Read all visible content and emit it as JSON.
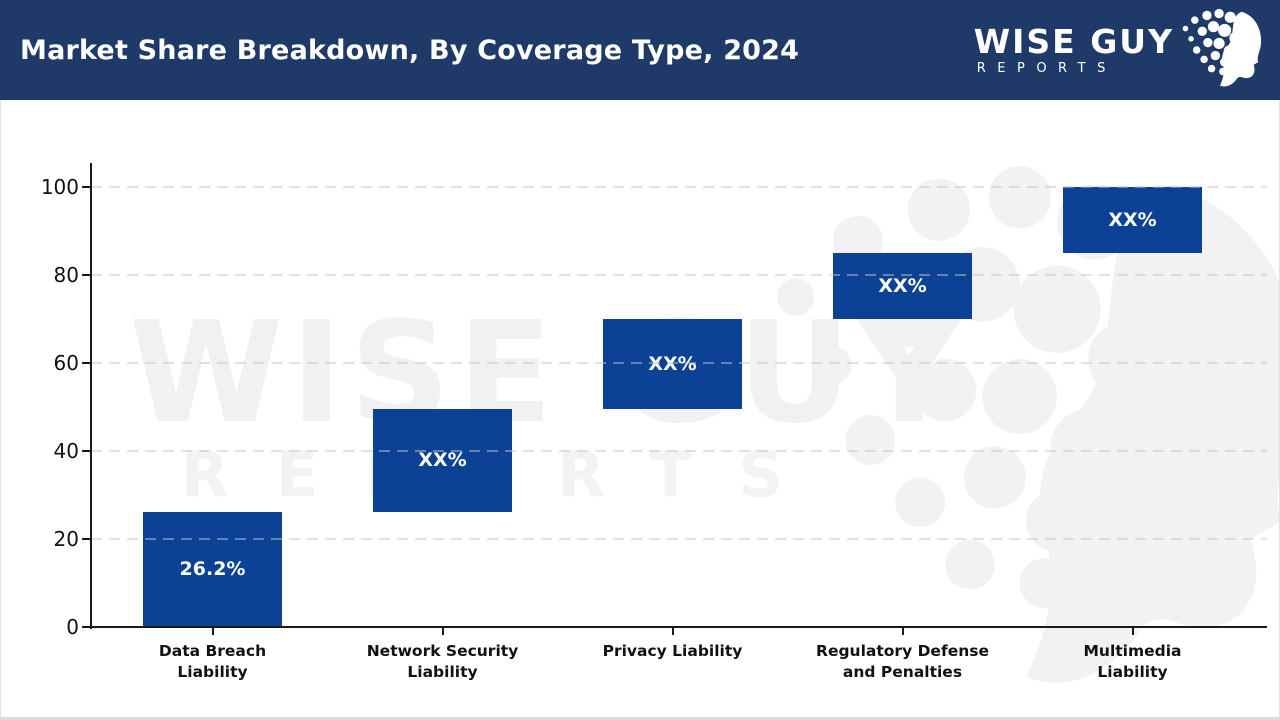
{
  "header": {
    "title": "Market Share Breakdown, By Coverage Type, 2024",
    "logo": {
      "line1": "WISE GUY",
      "line2": "REPORTS"
    }
  },
  "watermark": {
    "line1": "WISE GUY",
    "line2": "REPORTS"
  },
  "chart_data": {
    "type": "bar",
    "subtype": "waterfall",
    "title": "Market Share Breakdown, By Coverage Type, 2024",
    "categories": [
      "Data Breach\nLiability",
      "Network Security\nLiability",
      "Privacy Liability",
      "Regulatory Defense\nand Penalties",
      "Multimedia\nLiability"
    ],
    "bars": [
      {
        "category": "Data Breach Liability",
        "start": 0,
        "end": 26.2,
        "label": "26.2%"
      },
      {
        "category": "Network Security Liability",
        "start": 26.2,
        "end": 49.5,
        "label": "XX%"
      },
      {
        "category": "Privacy Liability",
        "start": 49.5,
        "end": 70,
        "label": "XX%"
      },
      {
        "category": "Regulatory Defense and Penalties",
        "start": 70,
        "end": 85,
        "label": "XX%"
      },
      {
        "category": "Multimedia Liability",
        "start": 85,
        "end": 100,
        "label": "XX%"
      }
    ],
    "xlabel": "",
    "ylabel": "",
    "ylim": [
      0,
      100
    ],
    "yticks": [
      0,
      20,
      40,
      60,
      80,
      100
    ],
    "grid": "horizontal-dashed",
    "legend": "none",
    "bar_color": "#0b4295",
    "bar_label_color": "#ffffff"
  },
  "colors": {
    "header_bg": "#1f3a68",
    "bar": "#0b4295",
    "grid": "#dedede",
    "axis": "#1a1a1a",
    "watermark": "#f1f1f4"
  }
}
